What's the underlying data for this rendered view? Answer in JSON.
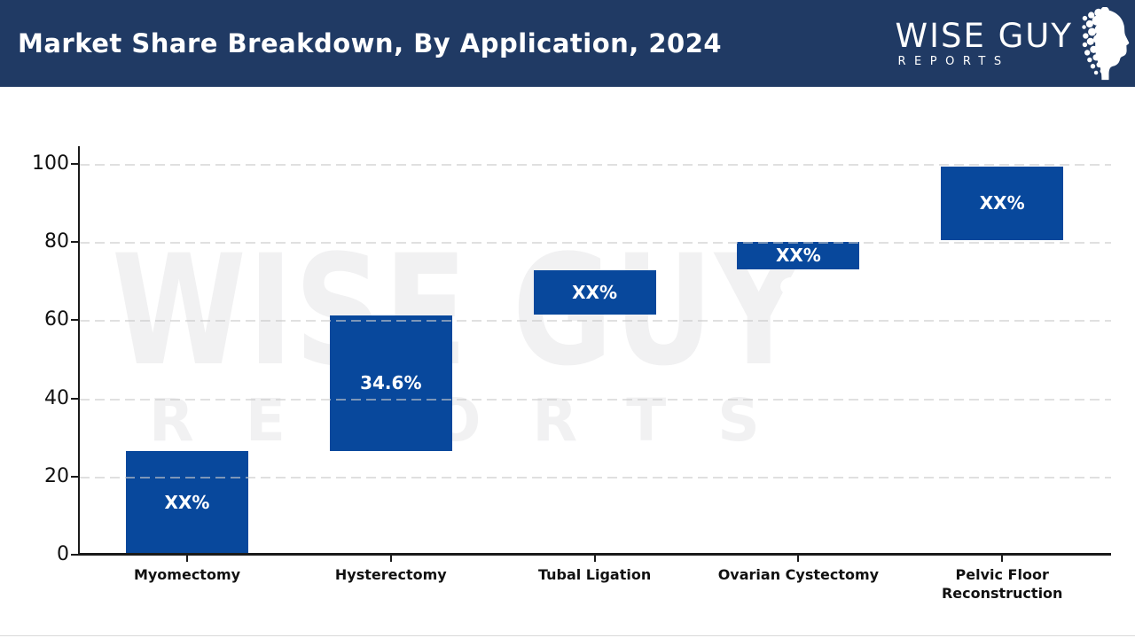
{
  "header": {
    "title": "Market Share Breakdown, By Application, 2024",
    "logo": {
      "line1": "WISE GUY",
      "line2": "REPORTS"
    }
  },
  "watermark": {
    "line1": "WISE GUY",
    "line2": "REPORTS"
  },
  "colors": {
    "header_bg": "#203a64",
    "bar": "#08489c",
    "bar_label": "#ffffff",
    "axis": "#1a1a1a",
    "gridline": "#cbcbcb",
    "watermark": "#f1f1f2",
    "title_text": "#ffffff",
    "tick_text": "#111111"
  },
  "chart_data": {
    "type": "bar",
    "subtype": "waterfall",
    "title": "Market Share Breakdown, By Application, 2024",
    "categories": [
      "Myomectomy",
      "Hysterectomy",
      "Tubal Ligation",
      "Ovarian Cystectomy",
      "Pelvic Floor Reconstruction"
    ],
    "segments": [
      {
        "category": "Myomectomy",
        "start": 0,
        "end": 26.6,
        "label": "XX%"
      },
      {
        "category": "Hysterectomy",
        "start": 26.6,
        "end": 61.2,
        "label": "34.6%"
      },
      {
        "category": "Tubal Ligation",
        "start": 61.3,
        "end": 72.7,
        "label": "XX%"
      },
      {
        "category": "Ovarian Cystectomy",
        "start": 73.0,
        "end": 80.0,
        "label": "XX%"
      },
      {
        "category": "Pelvic Floor Reconstruction",
        "start": 80.5,
        "end": 99.3,
        "label": "XX%"
      }
    ],
    "xlabel": "",
    "ylabel": "",
    "y_ticks": [
      0,
      20,
      40,
      60,
      80,
      100
    ],
    "ylim": [
      0,
      104.5
    ],
    "grid": "horizontal-dashed",
    "legend": "none"
  }
}
